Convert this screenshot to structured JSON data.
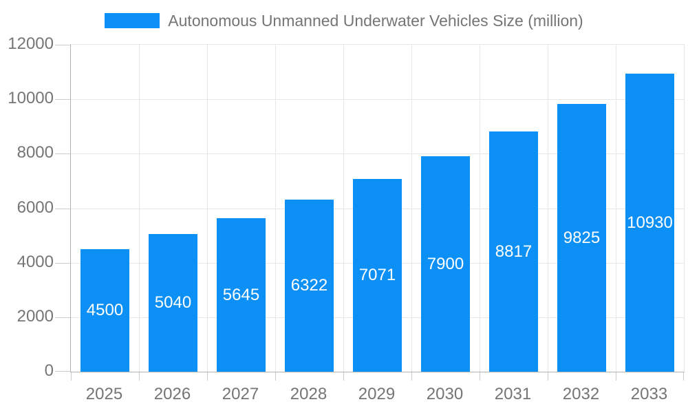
{
  "legend": {
    "label": "Autonomous Unmanned Underwater Vehicles Size (million)"
  },
  "chart_data": {
    "type": "bar",
    "title": "Autonomous Unmanned Underwater Vehicles Size (million)",
    "categories": [
      "2025",
      "2026",
      "2027",
      "2028",
      "2029",
      "2030",
      "2031",
      "2032",
      "2033"
    ],
    "values": [
      4500,
      5040,
      5645,
      6322,
      7071,
      7900,
      8817,
      9825,
      10930
    ],
    "series": [
      {
        "name": "Autonomous Unmanned Underwater Vehicles Size (million)",
        "values": [
          4500,
          5040,
          5645,
          6322,
          7071,
          7900,
          8817,
          9825,
          10930
        ]
      }
    ],
    "xlabel": "",
    "ylabel": "",
    "ylim": [
      0,
      12000
    ],
    "yticks": [
      0,
      2000,
      4000,
      6000,
      8000,
      10000,
      12000
    ],
    "grid": true,
    "legend_position": "top",
    "value_labels": "inside-center"
  },
  "colors": {
    "bar": "#0c90f6",
    "bar_value_text": "#ffffff",
    "axis_line": "#b0b0b0",
    "gridline": "#e6e6e6",
    "tick_mark": "#cccccc",
    "axis_text": "#757575",
    "background": "#ffffff"
  }
}
